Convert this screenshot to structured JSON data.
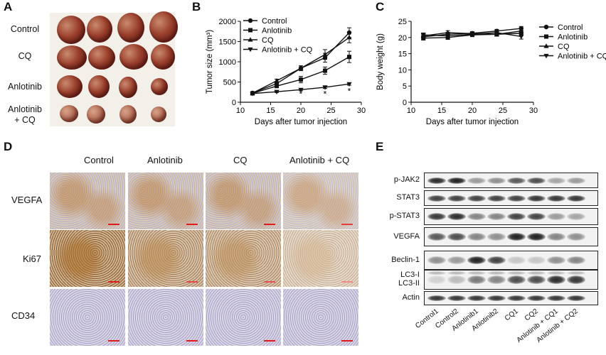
{
  "panels": {
    "a": "A",
    "b": "B",
    "c": "C",
    "d": "D",
    "e": "E"
  },
  "panel_a": {
    "row_labels": [
      "Control",
      "CQ",
      "Anlotinib",
      "Anlotinib\n+ CQ"
    ]
  },
  "panel_d": {
    "col_labels": [
      "Control",
      "Anlotinib",
      "CQ",
      "Anlotinib + CQ"
    ],
    "row_labels": [
      "VEGFA",
      "Ki67",
      "CD34"
    ]
  },
  "panel_e": {
    "rows": [
      "p-JAK2",
      "STAT3",
      "p-STAT3",
      "VEGFA",
      "Beclin-1",
      "LC3-I\nLC3-II",
      "Actin"
    ],
    "lanes": [
      "Control1",
      "Control2",
      "Anlotinib1",
      "Anlotinib2",
      "CQ1",
      "CQ2",
      "Anlotinib + CQ1",
      "Anlotinib + CQ2"
    ],
    "intensity": [
      [
        0.9,
        0.95,
        0.4,
        0.45,
        0.7,
        0.75,
        0.35,
        0.4
      ],
      [
        0.8,
        0.8,
        0.8,
        0.8,
        0.8,
        0.85,
        0.85,
        0.85
      ],
      [
        0.85,
        0.9,
        0.5,
        0.5,
        0.8,
        0.8,
        0.4,
        0.35
      ],
      [
        0.7,
        0.75,
        0.5,
        0.45,
        0.95,
        0.95,
        0.5,
        0.45
      ],
      [
        0.45,
        0.4,
        0.95,
        0.8,
        0.2,
        0.2,
        0.45,
        0.5
      ],
      [
        0.15,
        0.25,
        0.55,
        0.5,
        0.75,
        0.75,
        0.9,
        0.85
      ],
      [
        0.85,
        0.85,
        0.85,
        0.85,
        0.85,
        0.85,
        0.85,
        0.85
      ]
    ]
  },
  "chart_data": [
    {
      "type": "line",
      "xlabel": "Days after tumor injection",
      "ylabel": "Tumor size (mm³)",
      "xlim": [
        10,
        30
      ],
      "ylim": [
        0,
        2000
      ],
      "xticks": [
        10,
        15,
        20,
        25,
        30
      ],
      "yticks": [
        0,
        500,
        1000,
        1500,
        2000
      ],
      "legend": "top-left",
      "x": [
        12,
        16,
        20,
        24,
        28
      ],
      "series": [
        {
          "name": "Control",
          "marker": "circle",
          "values": [
            230,
            460,
            840,
            1100,
            1720
          ],
          "err": [
            20,
            40,
            60,
            110,
            120
          ]
        },
        {
          "name": "Anlotinib",
          "marker": "square",
          "values": [
            220,
            400,
            560,
            780,
            1120
          ],
          "err": [
            20,
            40,
            80,
            90,
            140
          ]
        },
        {
          "name": "CQ",
          "marker": "triangle-up",
          "values": [
            225,
            530,
            840,
            1180,
            1600
          ],
          "err": [
            20,
            40,
            60,
            120,
            130
          ]
        },
        {
          "name": "Anlotinib + CQ",
          "marker": "triangle-down",
          "values": [
            215,
            260,
            310,
            370,
            450
          ],
          "err": [
            15,
            20,
            25,
            30,
            30
          ]
        }
      ],
      "annotations": [
        {
          "text": "*",
          "x": 20,
          "y": 200
        },
        {
          "text": "*",
          "x": 24,
          "y": 200
        },
        {
          "text": "*",
          "x": 28,
          "y": 270
        }
      ]
    },
    {
      "type": "line",
      "xlabel": "Days after tumor injection",
      "ylabel": "Body weight (g)",
      "xlim": [
        10,
        30
      ],
      "ylim": [
        0,
        25
      ],
      "xticks": [
        10,
        15,
        20,
        25,
        30
      ],
      "yticks": [
        0,
        5,
        10,
        15,
        20,
        25
      ],
      "legend": "right",
      "x": [
        12,
        16,
        20,
        24,
        28
      ],
      "series": [
        {
          "name": "Control",
          "marker": "circle",
          "values": [
            20.2,
            21.0,
            21.3,
            22.0,
            22.8
          ],
          "err": [
            0.6,
            0.6,
            0.5,
            0.5,
            0.6
          ]
        },
        {
          "name": "Anlotinib",
          "marker": "square",
          "values": [
            19.8,
            20.0,
            20.8,
            21.0,
            21.3
          ],
          "err": [
            0.6,
            0.6,
            0.5,
            0.6,
            0.8
          ]
        },
        {
          "name": "CQ",
          "marker": "triangle-up",
          "values": [
            20.5,
            21.5,
            21.2,
            21.0,
            22.0
          ],
          "err": [
            0.6,
            0.6,
            0.5,
            0.6,
            0.6
          ]
        },
        {
          "name": "Anlotinib + CQ",
          "marker": "triangle-down",
          "values": [
            20.8,
            20.5,
            21.0,
            21.5,
            20.3
          ],
          "err": [
            0.6,
            0.6,
            0.5,
            0.6,
            0.8
          ]
        }
      ]
    }
  ]
}
